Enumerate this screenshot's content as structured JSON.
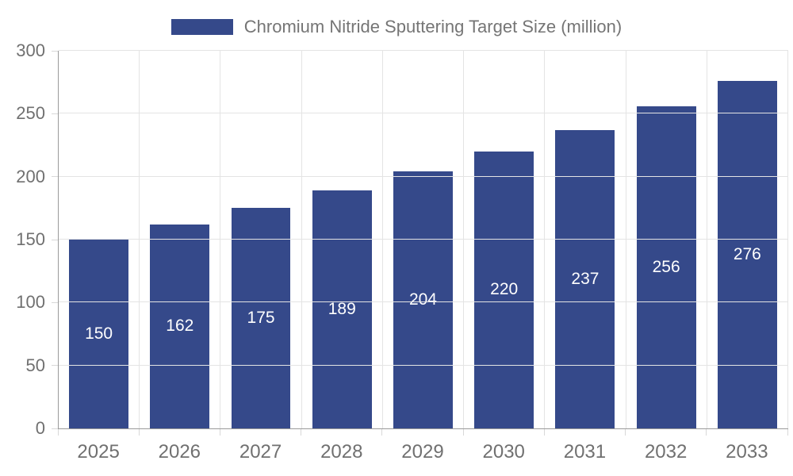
{
  "chart_data": {
    "type": "bar",
    "title": "Chromium Nitride Sputtering Target Size (million)",
    "categories": [
      "2025",
      "2026",
      "2027",
      "2028",
      "2029",
      "2030",
      "2031",
      "2032",
      "2033"
    ],
    "series": [
      {
        "name": "Chromium Nitride Sputtering Target Size (million)",
        "values": [
          150,
          162,
          175,
          189,
          204,
          220,
          237,
          256,
          276
        ]
      }
    ],
    "xlabel": "",
    "ylabel": "",
    "ylim": [
      0,
      300
    ],
    "yticks": [
      0,
      50,
      100,
      150,
      200,
      250,
      300
    ],
    "grid": true,
    "legend_position": "top",
    "colors": {
      "bar": "#35498a",
      "bar_label": "#ffffff",
      "axis_line": "#9a9a9a",
      "gridline": "#e4e4e4",
      "tick_mark": "#d8d8d8",
      "axis_text": "#707070",
      "legend_text": "#757575",
      "background": "#ffffff"
    }
  },
  "legend": {
    "label": "Chromium Nitride Sputtering Target Size (million)"
  }
}
